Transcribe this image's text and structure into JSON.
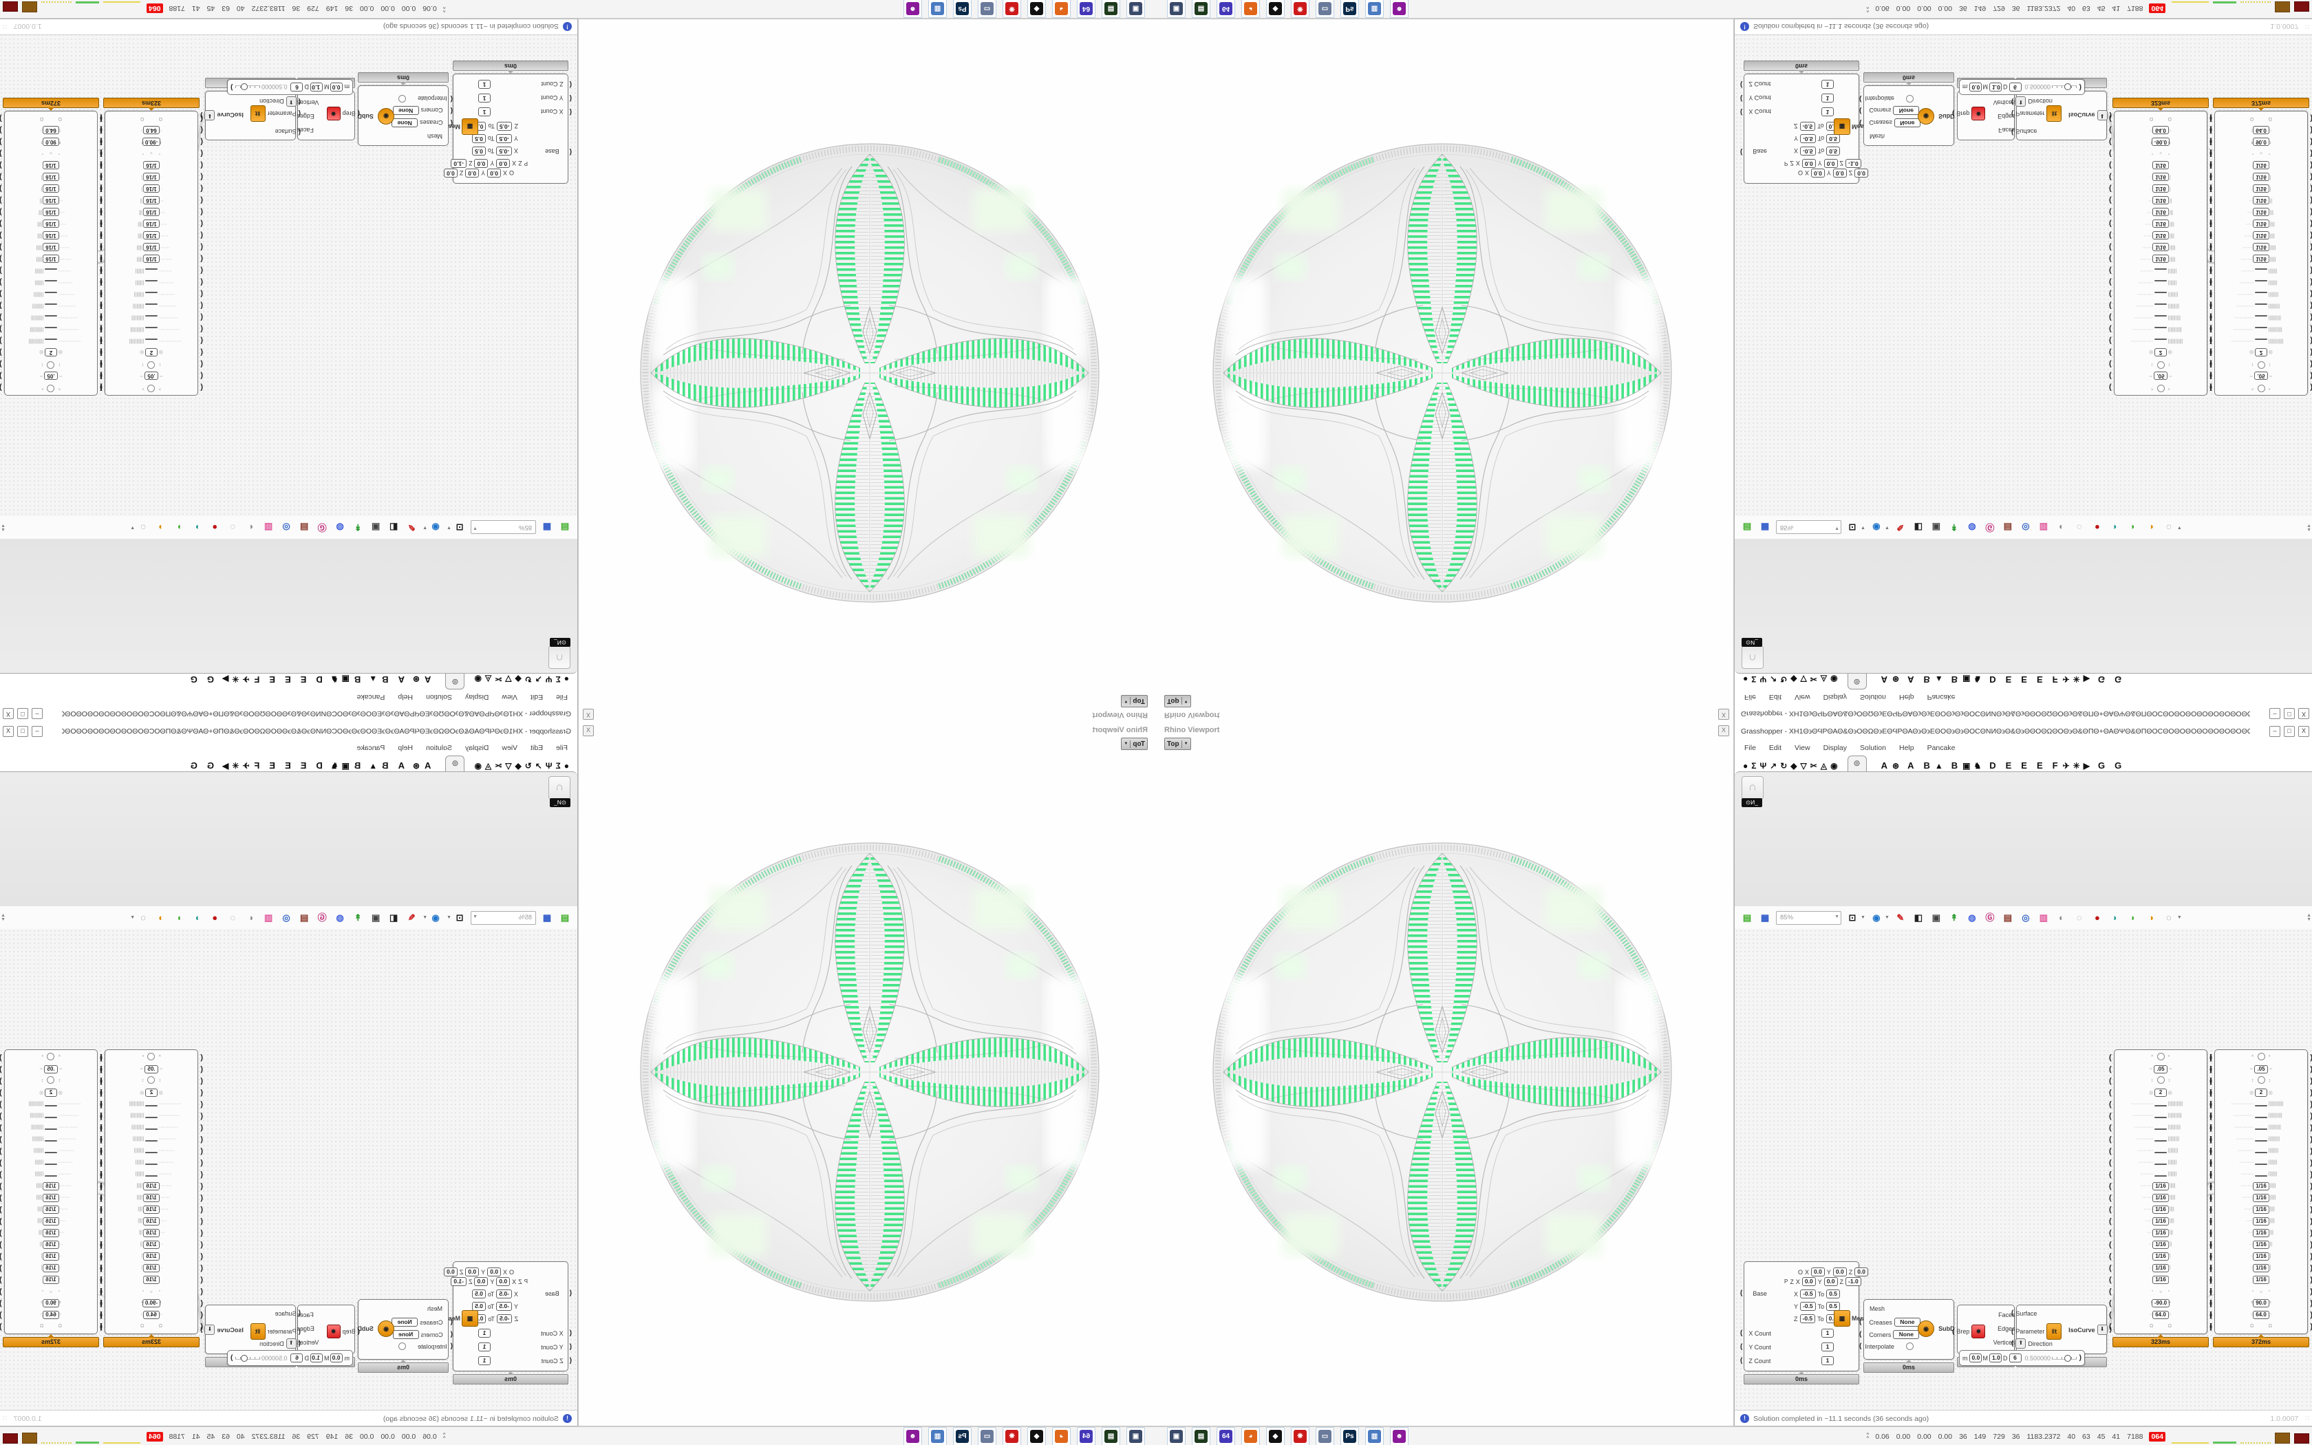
{
  "colors": {
    "accent_green": "#35e27d",
    "profiler_orange": "#e08c04",
    "badge_red": "#ee1111",
    "canvas_dot": "#dadada"
  },
  "viewport": {
    "title": "Rhino Viewport",
    "camera_button": "Top",
    "close_label": "X"
  },
  "gh": {
    "title": "Grasshopper - XH1Θ϶ΘϤΡΘΑΘ&Θ϶ΟΘΩΘ϶ΕΘϤΡΘΑΘ϶Θ϶ΕΘΟΘ϶Θ϶ΘΟϹΘΝИΘ϶Θ&Θ϶ΘΘΟΘΩΘΟΘ϶Θ&ΘΠΘ+ΘΑΘΨΘ&ΘΠΘΟϹΘΟΘΟΘΟΘΟΘΟΘΟΘΟΘΟΟ…",
    "window_buttons": {
      "minimize": "–",
      "maximize": "□",
      "close": "X"
    },
    "menu": [
      "File",
      "Edit",
      "View",
      "Display",
      "Solution",
      "Help",
      "Pancake"
    ],
    "tabs": [
      {
        "g": "●",
        "name": "params"
      },
      {
        "g": "Σ",
        "name": "maths"
      },
      {
        "g": "Ψ",
        "name": "sets"
      },
      {
        "g": "↗",
        "name": "vector"
      },
      {
        "g": "↻",
        "name": "curve"
      },
      {
        "g": "◆",
        "name": "surface"
      },
      {
        "g": "▽",
        "name": "mesh"
      },
      {
        "g": "✂",
        "name": "intersect"
      },
      {
        "g": "◬",
        "name": "transform"
      },
      {
        "g": "◉",
        "name": "display"
      },
      {
        "g": "⊚",
        "name": "plugin-selected",
        "sel": true
      },
      {
        "g": "A",
        "name": "plugin-a",
        "letter": true
      },
      {
        "g": "⊛",
        "name": "plugin-brain"
      },
      {
        "g": "A",
        "name": "plugin-a2",
        "letter": true
      },
      {
        "g": "B",
        "name": "plugin-b",
        "letter": true
      },
      {
        "g": "▲",
        "name": "plugin-mountain"
      },
      {
        "g": "B",
        "name": "plugin-b2",
        "letter": true
      },
      {
        "g": "▣",
        "name": "plugin-shield"
      },
      {
        "g": "♞",
        "name": "plugin-bird"
      },
      {
        "g": "D",
        "name": "plugin-d",
        "letter": true
      },
      {
        "g": "E",
        "name": "plugin-e1",
        "letter": true
      },
      {
        "g": "E",
        "name": "plugin-e2",
        "letter": true
      },
      {
        "g": "E",
        "name": "plugin-e3",
        "letter": true
      },
      {
        "g": "F",
        "name": "plugin-f",
        "letter": true
      },
      {
        "g": "✈",
        "name": "plugin-plane"
      },
      {
        "g": "✳",
        "name": "plugin-spider"
      },
      {
        "g": "▶",
        "name": "plugin-dart"
      },
      {
        "g": "G",
        "name": "plugin-g1",
        "letter": true
      },
      {
        "g": "G",
        "name": "plugin-g2",
        "letter": true
      }
    ],
    "ribbon_item": {
      "label": "⊙И_",
      "icon": "∩"
    },
    "toolbar": {
      "zoom_value": "85%",
      "items": [
        {
          "name": "open-file",
          "g": "▤",
          "c": "#3fae2a"
        },
        {
          "name": "save-file",
          "g": "▦",
          "c": "#2b58c8"
        },
        {
          "name": "zoom-select",
          "type": "zoom"
        },
        {
          "name": "zoom-extents",
          "g": "⊡",
          "c": "#1a1a1a",
          "dd": true
        },
        {
          "name": "preview",
          "g": "◉",
          "c": "#2277cc",
          "dd": true
        },
        {
          "name": "ink-sketch",
          "g": "✎",
          "c": "#cc2222"
        },
        {
          "name": "solid-display",
          "g": "◧",
          "c": "#222222"
        },
        {
          "name": "camera",
          "g": "▣",
          "c": "#444444"
        },
        {
          "name": "axes",
          "g": "↟",
          "c": "#2a9a2a"
        },
        {
          "name": "internet",
          "g": "◍",
          "c": "#4466dd"
        },
        {
          "name": "gha",
          "g": "Ⓖ",
          "c": "#c0327a"
        },
        {
          "name": "window-flag",
          "g": "▤",
          "c": "#88392a"
        },
        {
          "name": "find",
          "g": "◎",
          "c": "#3a6ac8"
        },
        {
          "name": "help-box",
          "g": "▥",
          "c": "#e0559a"
        },
        {
          "name": "grey-sphere",
          "g": "◐",
          "c": "#8a8a8a"
        },
        {
          "name": "rings",
          "g": "◌",
          "c": "#9a9a9a"
        },
        {
          "name": "red-sphere",
          "g": "●",
          "c": "#c01414"
        },
        {
          "name": "pin-teal",
          "g": "◗",
          "c": "#1a9a8a"
        },
        {
          "name": "pin-green",
          "g": "◗",
          "c": "#3fae2a"
        },
        {
          "name": "half-orange",
          "g": "◑",
          "c": "#e08c04"
        },
        {
          "name": "lasso",
          "g": "◌",
          "c": "#777777",
          "dd": true
        }
      ]
    },
    "canvas": {
      "box": {
        "p_label": "P",
        "row_o": {
          "k": "O",
          "xl": "X",
          "x": "0.0",
          "yl": "Y",
          "y": "0.0",
          "zl": "Z",
          "z": "0.0"
        },
        "row_z": {
          "k": "Z",
          "xl": "X",
          "x": "0.0",
          "yl": "Y",
          "y": "0.0",
          "zl": "Z",
          "z": "-1.0"
        },
        "base_label": "Base",
        "ranges": [
          {
            "k": "X",
            "a": "-0.5",
            "to": "To",
            "b": "0.5"
          },
          {
            "k": "Y",
            "a": "-0.5",
            "to": "To",
            "b": "0.5"
          },
          {
            "k": "Z",
            "a": "-0.5",
            "to": "To",
            "b": "0.5"
          }
        ],
        "counts": [
          {
            "label": "X Count",
            "v": "1"
          },
          {
            "label": "Y Count",
            "v": "1"
          },
          {
            "label": "Z Count",
            "v": "1"
          }
        ],
        "out": "Mesh",
        "time": "0ms"
      },
      "subd": {
        "in": "Mesh",
        "creases_label": "Creases",
        "creases": "None",
        "corners_label": "Corners",
        "corners": "None",
        "interp_label": "Interpolate",
        "out": "SubD",
        "time": "0ms"
      },
      "brep": {
        "in": "Brep",
        "outs": [
          "Faces",
          "Edges",
          "Vertices"
        ],
        "time": "2ms"
      },
      "iso": {
        "ins": [
          "Surface",
          "Parameter",
          "Direction"
        ],
        "icon": "‖t",
        "out": "IsoCurve",
        "time": "0ms"
      },
      "range": {
        "m_label": "m",
        "m": "0.0",
        "M_label": "M",
        "M": "1.0",
        "d_label": "D",
        "d": "6",
        "slider_value": "0.500000"
      },
      "stacks": [
        {
          "time": "323ms",
          "rows": [
            {
              "l": "^",
              "c": "",
              "r": "*",
              "s": "circle"
            },
            {
              "l": "⇔",
              "c": ".05",
              "r": "⇔",
              "s": "box"
            },
            {
              "l": "↕",
              "c": "",
              "r": "↕",
              "s": "circle"
            },
            {
              "l": "◎",
              "c": "2",
              "r": "◎",
              "s": "box"
            },
            {
              "l": "··············",
              "c": "",
              "r": "||||||||||||",
              "s": "box"
            },
            {
              "l": "·············",
              "c": "",
              "r": "|||||||||||",
              "s": "box"
            },
            {
              "l": "············",
              "c": "",
              "r": "||||||||||",
              "s": "box"
            },
            {
              "l": "···········",
              "c": "",
              "r": "|||||||||",
              "s": "box"
            },
            {
              "l": "··········",
              "c": "",
              "r": "||||||||",
              "s": "box"
            },
            {
              "l": "·········",
              "c": "",
              "r": "|||||||",
              "s": "box"
            },
            {
              "l": "········",
              "c": "",
              "r": "|||||||",
              "s": "box"
            },
            {
              "l": "········",
              "c": "1/16",
              "r": "||||||",
              "s": "box"
            },
            {
              "l": "·······",
              "c": "1/16",
              "r": "||||||",
              "s": "box"
            },
            {
              "l": "······",
              "c": "1/16",
              "r": "|||||",
              "s": "box"
            },
            {
              "l": "·····",
              "c": "1/16",
              "r": "|||||",
              "s": "box"
            },
            {
              "l": "····",
              "c": "1/16",
              "r": "||||",
              "s": "box"
            },
            {
              "l": "···",
              "c": "1/16",
              "r": "|||",
              "s": "box"
            },
            {
              "l": "··",
              "c": "1/16",
              "r": "||",
              "s": "box"
            },
            {
              "l": "··",
              "c": "1/16",
              "r": "||",
              "s": "box"
            },
            {
              "l": "·",
              "c": "1/16",
              "r": "|",
              "s": "box"
            },
            {
              "l": "▫",
              "c": "▫",
              "r": "▫",
              "s": "plain"
            },
            {
              "l": "¤",
              "c": "-90.0",
              "r": "¤",
              "s": "box"
            },
            {
              "l": "○",
              "c": "64.0",
              "r": "○",
              "s": "box"
            },
            {
              "l": "Ω",
              "c": "",
              "r": "Ω",
              "s": "plain"
            }
          ]
        },
        {
          "time": "372ms",
          "rows": [
            {
              "l": "^",
              "c": "",
              "r": "*",
              "s": "circle"
            },
            {
              "l": "⇔",
              "c": ".05",
              "r": "⇔",
              "s": "box"
            },
            {
              "l": "↕",
              "c": "",
              "r": "↕",
              "s": "circle"
            },
            {
              "l": "◎",
              "c": "2",
              "r": "◎",
              "s": "box"
            },
            {
              "l": "··············",
              "c": "",
              "r": "||||||||||||",
              "s": "box"
            },
            {
              "l": "·············",
              "c": "",
              "r": "|||||||||||",
              "s": "box"
            },
            {
              "l": "············",
              "c": "",
              "r": "||||||||||",
              "s": "box"
            },
            {
              "l": "···········",
              "c": "",
              "r": "|||||||||",
              "s": "box"
            },
            {
              "l": "··········",
              "c": "",
              "r": "||||||||",
              "s": "box"
            },
            {
              "l": "·········",
              "c": "",
              "r": "|||||||",
              "s": "box"
            },
            {
              "l": "········",
              "c": "",
              "r": "|||||||",
              "s": "box"
            },
            {
              "l": "········",
              "c": "1/16",
              "r": "||||||",
              "s": "box"
            },
            {
              "l": "·······",
              "c": "1/16",
              "r": "||||||",
              "s": "box"
            },
            {
              "l": "······",
              "c": "1/16",
              "r": "|||||",
              "s": "box"
            },
            {
              "l": "·····",
              "c": "1/16",
              "r": "|||||",
              "s": "box"
            },
            {
              "l": "····",
              "c": "1/16",
              "r": "||||",
              "s": "box"
            },
            {
              "l": "···",
              "c": "1/16",
              "r": "|||",
              "s": "box"
            },
            {
              "l": "··",
              "c": "1/16",
              "r": "||",
              "s": "box"
            },
            {
              "l": "··",
              "c": "1/16",
              "r": "||",
              "s": "box"
            },
            {
              "l": "·",
              "c": "1/16",
              "r": "|",
              "s": "box"
            },
            {
              "l": "▫",
              "c": "▫",
              "r": "▫",
              "s": "plain"
            },
            {
              "l": "¤",
              "c": "90.0",
              "r": "¤",
              "s": "box"
            },
            {
              "l": "○",
              "c": "64.0",
              "r": "○",
              "s": "box"
            },
            {
              "l": "Ω",
              "c": "",
              "r": "Ω",
              "s": "plain"
            }
          ]
        }
      ]
    },
    "status": {
      "text": "Solution completed in ~11.1 seconds (36 seconds ago)",
      "version": "1.0.0007",
      "grip": "∷"
    }
  },
  "taskbar": {
    "apps": [
      {
        "name": "screenshot-tool",
        "g": "▣",
        "c": "#3a4a6a"
      },
      {
        "name": "disk-utility",
        "g": "▤",
        "c": "#1d3a1d"
      },
      {
        "name": "vice-c64",
        "g": "64",
        "c": "#4438b8"
      },
      {
        "name": "firefox",
        "g": "◕",
        "c": "#e0661a"
      },
      {
        "name": "inkscape",
        "g": "◆",
        "c": "#111111"
      },
      {
        "name": "red-app",
        "g": "❋",
        "c": "#cc1a1a"
      },
      {
        "name": "file-manager",
        "g": "▭",
        "c": "#6a7a9a"
      },
      {
        "name": "photoshop",
        "g": "Ps",
        "c": "#0a2a4a"
      },
      {
        "name": "remote-desktop",
        "g": "▥",
        "c": "#4a7ac0"
      },
      {
        "name": "chat-app",
        "g": "☻",
        "c": "#8a1a9a"
      }
    ],
    "monitor": {
      "values": [
        "0.06",
        "0.00",
        "0.00",
        "0.00",
        "36",
        "149",
        "729",
        "36",
        "1183.2372",
        "40",
        "63",
        "45",
        "41",
        "7188"
      ],
      "badge": "064"
    }
  }
}
